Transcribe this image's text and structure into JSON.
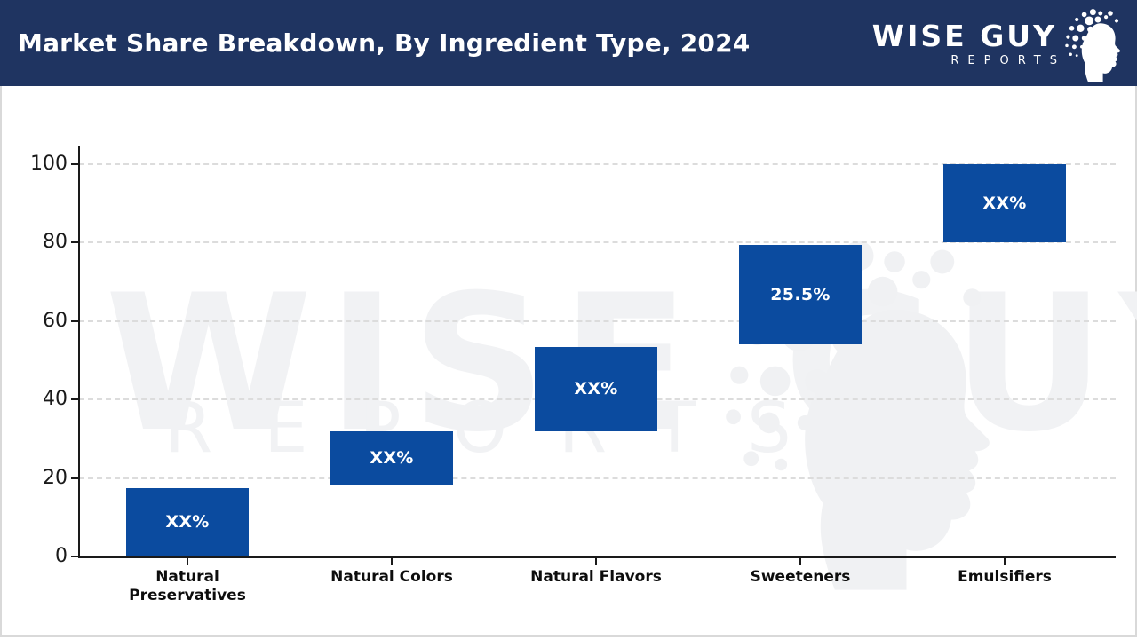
{
  "header": {
    "title": "Market Share Breakdown, By Ingredient Type, 2024",
    "logo": {
      "name": "WISE GUY",
      "tagline": "REPORTS"
    }
  },
  "watermark": {
    "line1": "WISE GUY",
    "line2": "REPORTS"
  },
  "chart_data": {
    "type": "bar",
    "subtype": "floating-segment-waterfall",
    "title": "Market Share Breakdown, By Ingredient Type, 2024",
    "unit": "%",
    "categories": [
      "Natural Preservatives",
      "Natural Colors",
      "Natural Flavors",
      "Sweeteners",
      "Emulsifiers"
    ],
    "bars": [
      {
        "category": "Natural Preservatives",
        "start": 0,
        "end": 17.5,
        "label": "XX%"
      },
      {
        "category": "Natural Colors",
        "start": 18,
        "end": 32,
        "label": "XX%"
      },
      {
        "category": "Natural Flavors",
        "start": 32,
        "end": 53.5,
        "label": "XX%"
      },
      {
        "category": "Sweeteners",
        "start": 54,
        "end": 79.5,
        "label": "25.5%"
      },
      {
        "category": "Emulsifiers",
        "start": 80,
        "end": 100,
        "label": "XX%"
      }
    ],
    "ylim": [
      0,
      100
    ],
    "yticks": [
      0,
      20,
      40,
      60,
      80,
      100
    ],
    "xlabel": "",
    "ylabel": "",
    "grid": "horizontal-dashed",
    "legend": "none",
    "colors": {
      "bar": "#0B4B9F",
      "bar_label": "#FFFFFF",
      "axis": "#1A1A1A",
      "gridline": "#DCDCDC",
      "header_bg": "#1F3461",
      "watermark": "#F1F2F4"
    }
  }
}
